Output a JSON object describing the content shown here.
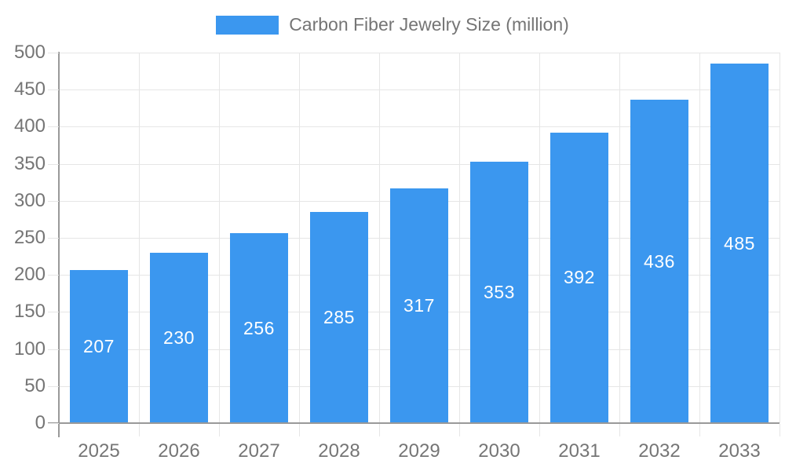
{
  "chart_data": {
    "type": "bar",
    "title": "Carbon Fiber Jewelry Size (million)",
    "legend": {
      "position": "top",
      "label": "Carbon Fiber Jewelry Size (million)"
    },
    "categories": [
      "2025",
      "2026",
      "2027",
      "2028",
      "2029",
      "2030",
      "2031",
      "2032",
      "2033"
    ],
    "values": [
      207,
      230,
      256,
      285,
      317,
      353,
      392,
      436,
      485
    ],
    "xlabel": "",
    "ylabel": "",
    "ylim": [
      0,
      500
    ],
    "yticks": [
      0,
      50,
      100,
      150,
      200,
      250,
      300,
      350,
      400,
      450,
      500
    ],
    "grid": true,
    "colors": {
      "bar": "#3B97EF",
      "value_label": "#FFFFFF",
      "axis_text": "#757575",
      "grid_line": "#E6E6E6",
      "axis_line": "#999999"
    },
    "bar_band_fraction": 0.735
  }
}
